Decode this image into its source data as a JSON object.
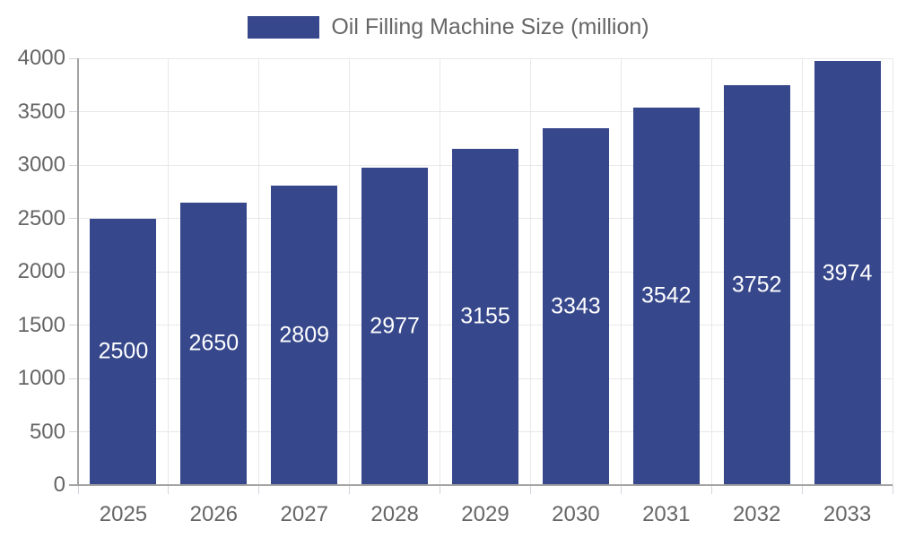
{
  "legend": {
    "label": "Oil Filling Machine Size (million)"
  },
  "colors": {
    "bar": "#36478B",
    "axis": "#a3a3a3",
    "grid": "#e8e8e8",
    "tick": "#d2d4dc",
    "tick_label": "#666666",
    "bar_label": "#ffffff"
  },
  "chart_data": {
    "type": "bar",
    "title": "Oil Filling Machine Size (million)",
    "categories": [
      "2025",
      "2026",
      "2027",
      "2028",
      "2029",
      "2030",
      "2031",
      "2032",
      "2033"
    ],
    "values": [
      2500,
      2650,
      2809,
      2977,
      3155,
      3343,
      3542,
      3752,
      3974
    ],
    "xlabel": "",
    "ylabel": "",
    "ylim": [
      0,
      4000
    ],
    "ytick_step": 500,
    "ytick_labels": [
      "0",
      "500",
      "1000",
      "1500",
      "2000",
      "2500",
      "3000",
      "3500",
      "4000"
    ],
    "grid": true,
    "legend_position": "top",
    "value_labels": "inside-center",
    "series": [
      {
        "name": "Oil Filling Machine Size (million)",
        "values": [
          2500,
          2650,
          2809,
          2977,
          3155,
          3343,
          3542,
          3752,
          3974
        ]
      }
    ]
  }
}
